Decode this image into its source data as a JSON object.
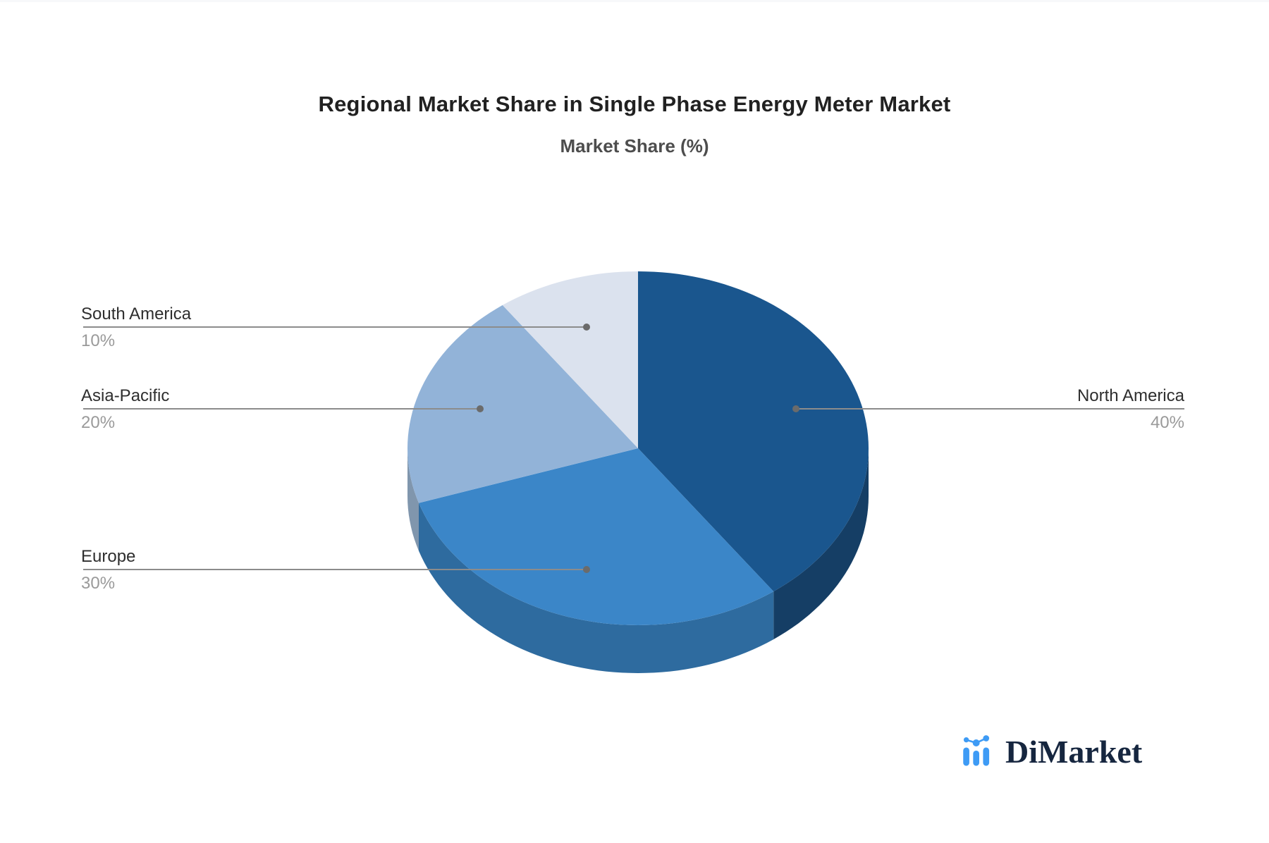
{
  "header": {
    "title": "Regional Market Share in Single Phase Energy Meter Market",
    "subtitle": "Market Share (%)"
  },
  "chart_data": {
    "type": "pie",
    "title": "Regional Market Share in Single Phase Energy Meter Market",
    "subtitle": "Market Share (%)",
    "unit": "%",
    "style": "3d-pie",
    "start_angle_deg": 0,
    "direction": "clockwise",
    "slices": [
      {
        "label": "North America",
        "value": 40,
        "display": "40%",
        "color": "#1A568E",
        "side_color": "#153E65",
        "label_side": "right"
      },
      {
        "label": "Europe",
        "value": 30,
        "display": "30%",
        "color": "#3B86C8",
        "side_color": "#2E6B9F",
        "label_side": "left"
      },
      {
        "label": "Asia-Pacific",
        "value": 20,
        "display": "20%",
        "color": "#92B3D8",
        "side_color": "#8096AD",
        "label_side": "left"
      },
      {
        "label": "South America",
        "value": 10,
        "display": "10%",
        "color": "#DBE2EE",
        "side_color": "#AFBACB",
        "label_side": "left"
      }
    ]
  },
  "branding": {
    "logo_text": "DiMarket",
    "logo_icon": "bar-line-chart-icon",
    "logo_icon_color": "#3E9BF5",
    "logo_text_color": "#16263F"
  },
  "colors": {
    "background": "#FFFFFF",
    "title": "#212121",
    "subtitle": "#4D4D4D",
    "label_name": "#2E2E2E",
    "label_value": "#9A9A9A",
    "leader_line": "#8C8C8C",
    "leader_dot": "#6B6B6B"
  }
}
